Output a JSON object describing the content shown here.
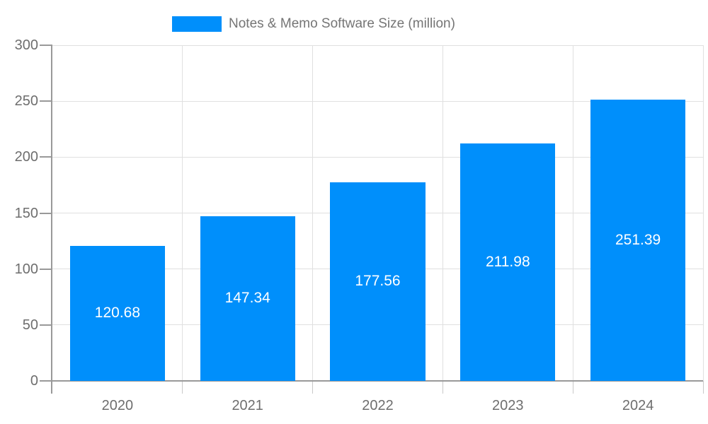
{
  "colors": {
    "bar": "#008FFB",
    "axis_line": "#999999",
    "gridline": "#e0e0e0",
    "x_tick": "#c9c9c9",
    "axis_label": "#6e6e6e",
    "legend_text": "#757575",
    "value_label": "#ffffff"
  },
  "chart_data": {
    "type": "bar",
    "title": "Notes & Memo Software Size (million)",
    "categories": [
      "2020",
      "2021",
      "2022",
      "2023",
      "2024"
    ],
    "values": [
      120.68,
      147.34,
      177.56,
      211.98,
      251.39
    ],
    "xlabel": "",
    "ylabel": "",
    "ylim": [
      0,
      300
    ],
    "yticks": [
      0,
      50,
      100,
      150,
      200,
      250,
      300
    ],
    "grid": true,
    "legend_position": "top"
  }
}
